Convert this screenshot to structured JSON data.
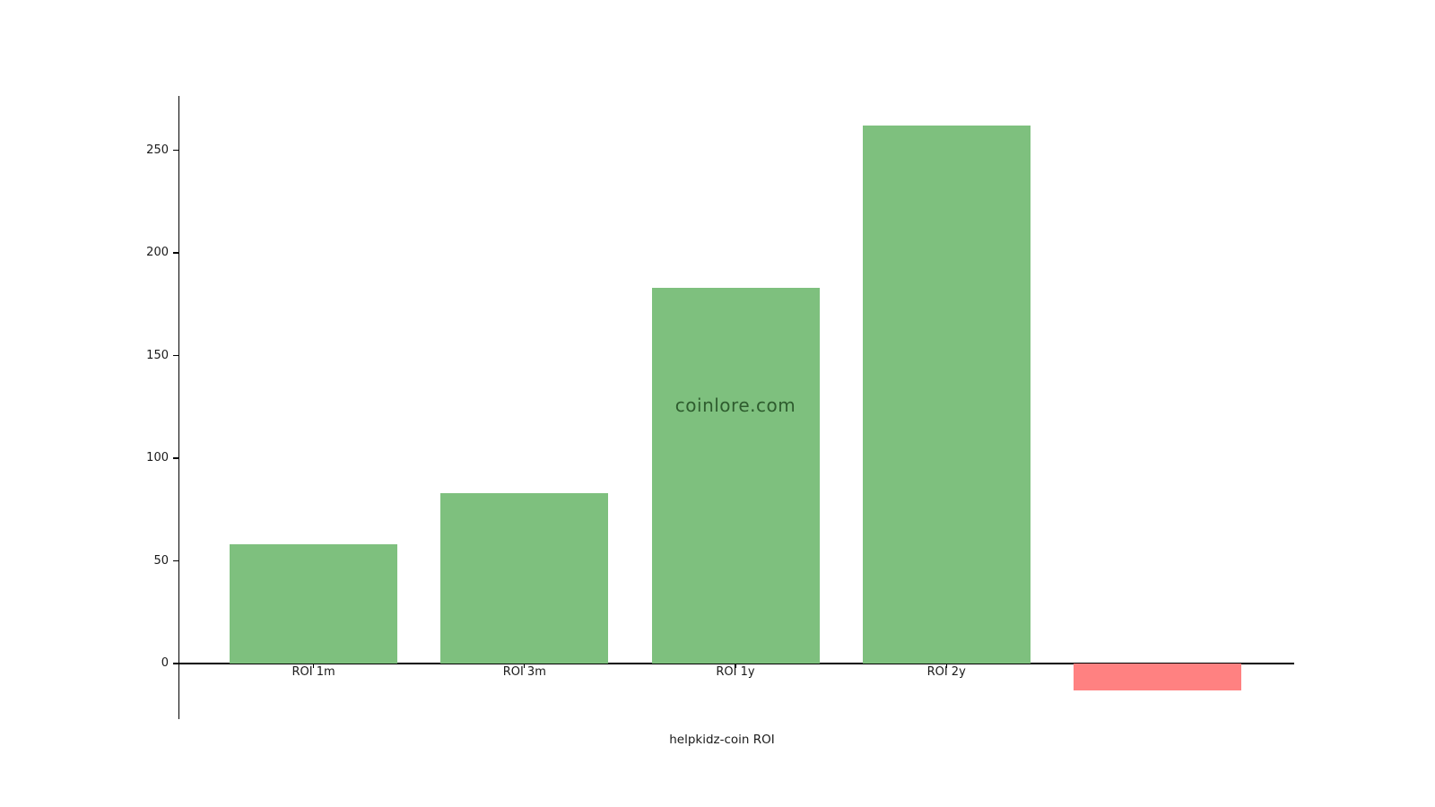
{
  "watermark": "coinlore.com",
  "chart_data": {
    "type": "bar",
    "title": "helpkidz-coin ROI",
    "categories": [
      "ROI 1m",
      "ROI 3m",
      "ROI 1y",
      "ROI 2y",
      ""
    ],
    "values": [
      58,
      83,
      183,
      262,
      -13
    ],
    "series": [
      {
        "name": "helpkidz-coin ROI %",
        "values": [
          58,
          83,
          183,
          262,
          -13
        ]
      }
    ],
    "y_ticks": [
      0,
      50,
      100,
      150,
      200,
      250
    ],
    "ylim": [
      -27,
      276
    ],
    "xlabel": "",
    "ylabel": "",
    "grid": false,
    "legend": null,
    "positive_color": "#7ec07e",
    "negative_color": "#ff8181",
    "axis_color": "#000000",
    "text_color": "#1a1a1a",
    "watermark_color": "#2e5c2e",
    "background_color": "#ffffff"
  }
}
